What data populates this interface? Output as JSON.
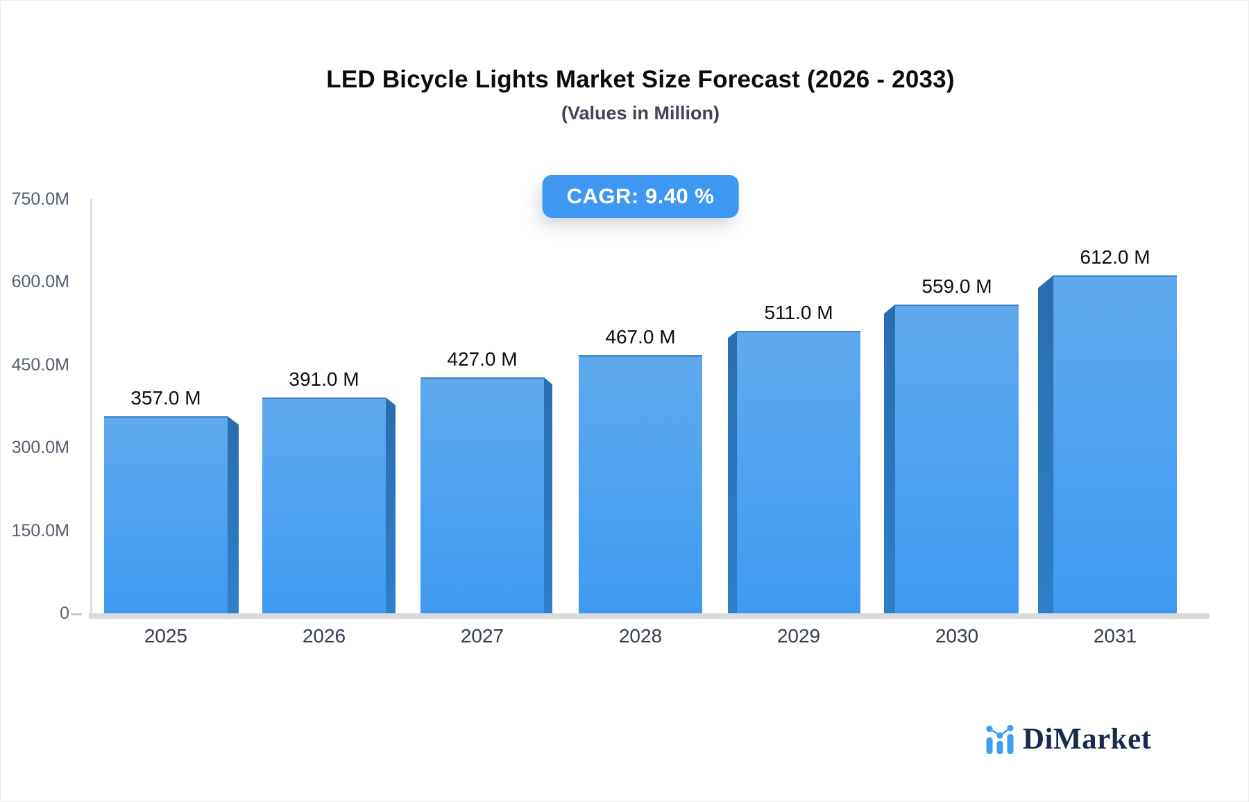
{
  "title": "LED Bicycle Lights Market Size Forecast (2026 - 2033)",
  "subtitle": "(Values in Million)",
  "badge": {
    "label": "CAGR: 9.40 %"
  },
  "brand": {
    "name": "DiMarket",
    "icon": "bar-line-chart-icon"
  },
  "colors": {
    "bar_face_top": "#60a9ee",
    "bar_face_bottom": "#3e9af1",
    "bar_side": "#2d76ba",
    "badge_bg": "#3e97f0",
    "badge_text": "#ffffff",
    "axis_line": "#d9dbdf",
    "floor": "#d8dade",
    "y_label": "#555f70",
    "x_label": "#343e4e",
    "data_label": "#0c0d0f",
    "title_text": "#0b0b0d",
    "subtitle_text": "#3e4553",
    "brand_text": "#182a4d",
    "brand_icon": "#3f9ef2"
  },
  "chart_data": {
    "type": "bar",
    "categories": [
      "2025",
      "2026",
      "2027",
      "2028",
      "2029",
      "2030",
      "2031"
    ],
    "values": [
      357.0,
      391.0,
      427.0,
      467.0,
      511.0,
      559.0,
      612.0
    ],
    "data_labels": [
      "357.0 M",
      "391.0 M",
      "427.0 M",
      "467.0 M",
      "511.0 M",
      "559.0 M",
      "612.0 M"
    ],
    "unit": "Million",
    "title": "LED Bicycle Lights Market Size Forecast (2026 - 2033)",
    "xlabel": "",
    "ylabel": "",
    "ylim": [
      0,
      750
    ],
    "y_ticks": [
      {
        "value": 0,
        "label": "0"
      },
      {
        "value": 150,
        "label": "150.0M"
      },
      {
        "value": 300,
        "label": "300.0M"
      },
      {
        "value": 450,
        "label": "450.0M"
      },
      {
        "value": 600,
        "label": "600.0M"
      },
      {
        "value": 750,
        "label": "750.0M"
      }
    ],
    "grid": false,
    "legend": false,
    "effect": "3d-perspective-bars",
    "annotations": [
      "CAGR: 9.40 %"
    ]
  }
}
